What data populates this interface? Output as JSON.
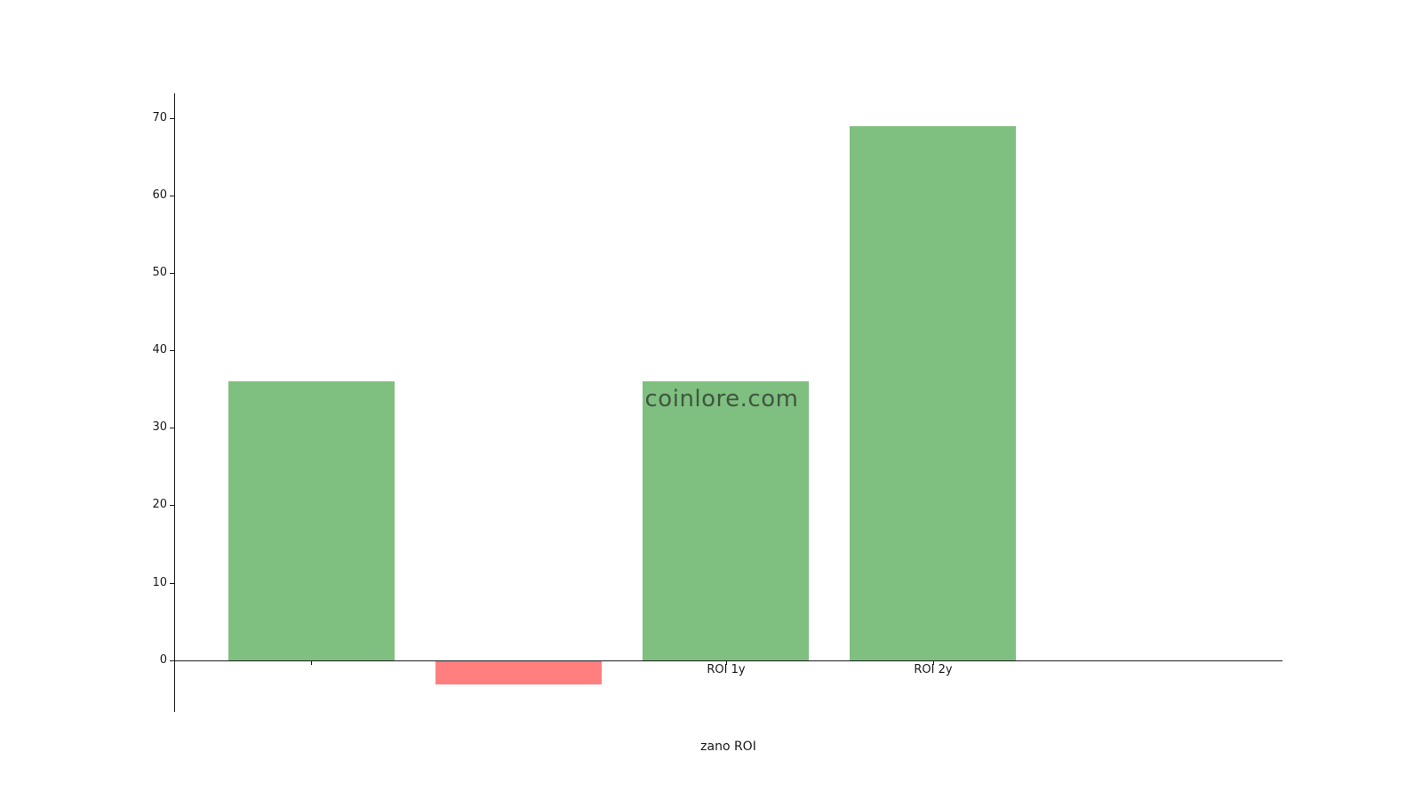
{
  "chart_data": {
    "type": "bar",
    "title": "",
    "xlabel": "zano ROI",
    "ylabel": "",
    "categories": [
      "",
      "",
      "ROI 1y",
      "ROI 2y"
    ],
    "values": [
      36,
      -3,
      36,
      69
    ],
    "yticks": [
      0,
      10,
      20,
      30,
      40,
      50,
      60,
      70
    ],
    "ylim": [
      -6.7,
      73.2
    ],
    "positive_color": "#7fbf7f",
    "negative_color": "#ff7f7f",
    "grid": false,
    "legend_position": "none",
    "watermark": "coinlore.com"
  }
}
